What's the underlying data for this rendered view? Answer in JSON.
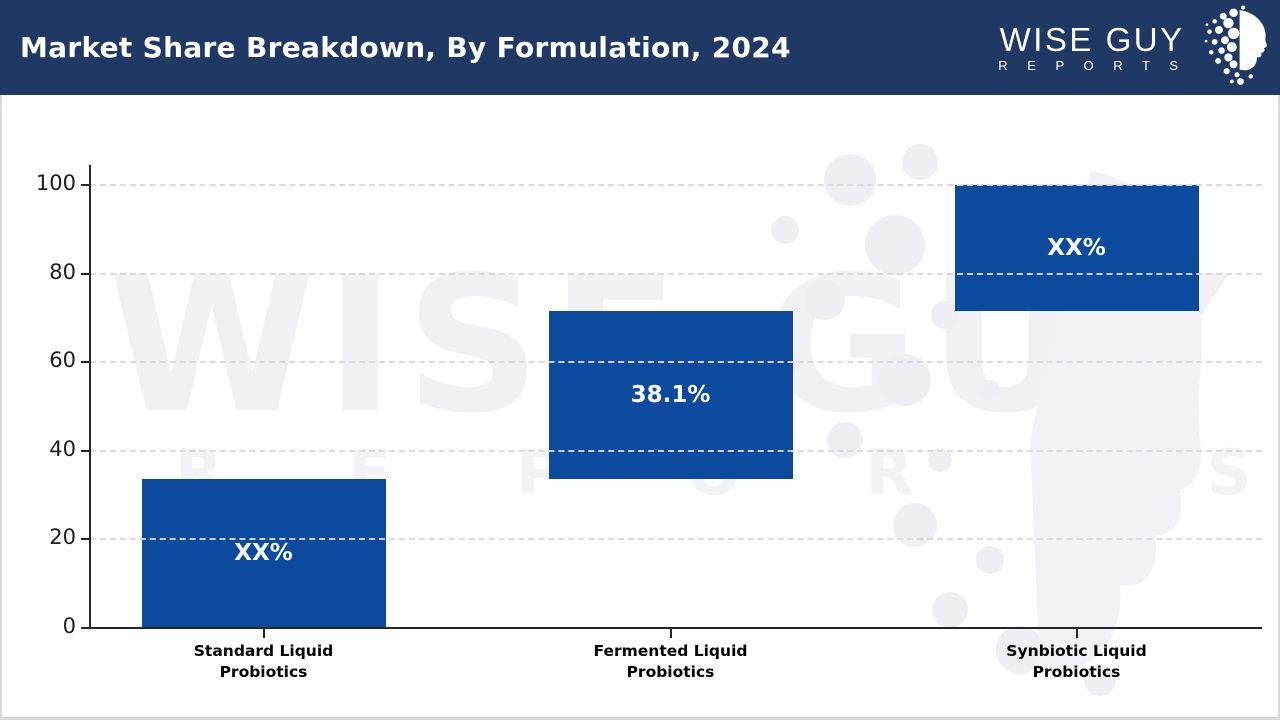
{
  "header": {
    "title": "Market Share Breakdown, By Formulation, 2024",
    "logo": {
      "name": "WISE GUY",
      "tagline": "R E P O R T S"
    }
  },
  "watermark": {
    "line1": "WISE GUY",
    "line2": "R E P O R T S"
  },
  "colors": {
    "header_bg": "#1f3864",
    "bar": "#0c4a9e",
    "bar_label_text": "#ffffff",
    "axis": "#262626",
    "gridline": "#dcdfe6",
    "watermark_text": "#f1f1f4",
    "page_border": "#d9d9d9"
  },
  "chart_data": {
    "type": "bar",
    "subtype": "floating-waterfall",
    "title": "Market Share Breakdown, By Formulation, 2024",
    "categories": [
      "Standard Liquid Probiotics",
      "Fermented Liquid Probiotics",
      "Synbiotic Liquid Probiotics"
    ],
    "bars": [
      {
        "category": "Standard Liquid Probiotics",
        "start": 0,
        "end": 33.5,
        "value": 33.5,
        "label": "XX%"
      },
      {
        "category": "Fermented Liquid Probiotics",
        "start": 33.5,
        "end": 71.6,
        "value": 38.1,
        "label": "38.1%"
      },
      {
        "category": "Synbiotic Liquid Probiotics",
        "start": 71.6,
        "end": 100,
        "value": 28.4,
        "label": "XX%"
      }
    ],
    "xlabel": "",
    "ylabel": "",
    "yticks": [
      0,
      20,
      40,
      60,
      80,
      100
    ],
    "ylim": [
      0,
      100
    ],
    "grid": "horizontal-dashed",
    "legend": "none"
  }
}
